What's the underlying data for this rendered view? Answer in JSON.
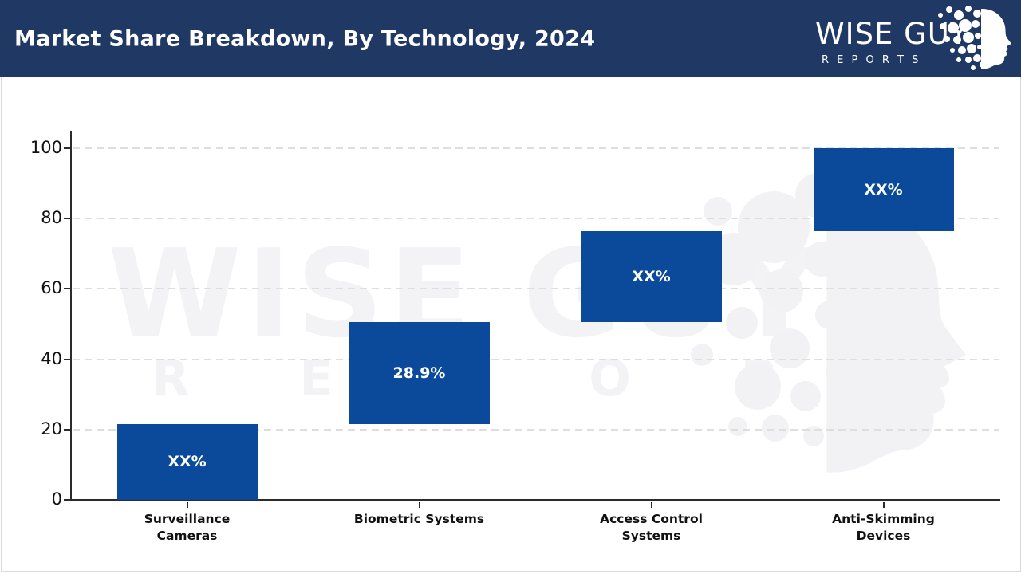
{
  "header": {
    "title": "Market Share Breakdown, By Technology, 2024",
    "logo": {
      "line1": "WISE GUY",
      "line2": "R E P O R T S"
    }
  },
  "watermark": {
    "line1": "WISE GUY",
    "line2": "R E P O R T S"
  },
  "colors": {
    "header_bg": "#1f3864",
    "bar_fill": "#0b4a9b",
    "bar_label": "#ffffff",
    "axis": "#2b2b2b",
    "gridline": "#dedede",
    "watermark": "#f3f3f5",
    "frame_border": "#d9d9d9"
  },
  "chart_data": {
    "type": "waterfall",
    "title": "Market Share Breakdown, By Technology, 2024",
    "xlabel": "",
    "ylabel": "",
    "ylim": [
      0,
      105
    ],
    "yticks": [
      0,
      20,
      40,
      60,
      80,
      100
    ],
    "grid": "horizontal-dashed",
    "categories": [
      {
        "name": "Surveillance Cameras",
        "lines": [
          "Surveillance",
          "Cameras"
        ]
      },
      {
        "name": "Biometric Systems",
        "lines": [
          "Biometric Systems"
        ]
      },
      {
        "name": "Access Control Systems",
        "lines": [
          "Access Control",
          "Systems"
        ]
      },
      {
        "name": "Anti-Skimming Devices",
        "lines": [
          "Anti-Skimming",
          "Devices"
        ]
      }
    ],
    "segments": [
      {
        "category": "Surveillance Cameras",
        "start": 0,
        "end": 21.6,
        "label": "XX%"
      },
      {
        "category": "Biometric Systems",
        "start": 21.6,
        "end": 50.5,
        "label": "28.9%"
      },
      {
        "category": "Access Control Systems",
        "start": 50.5,
        "end": 76.4,
        "label": "XX%"
      },
      {
        "category": "Anti-Skimming Devices",
        "start": 76.4,
        "end": 100.0,
        "label": "XX%"
      }
    ]
  }
}
